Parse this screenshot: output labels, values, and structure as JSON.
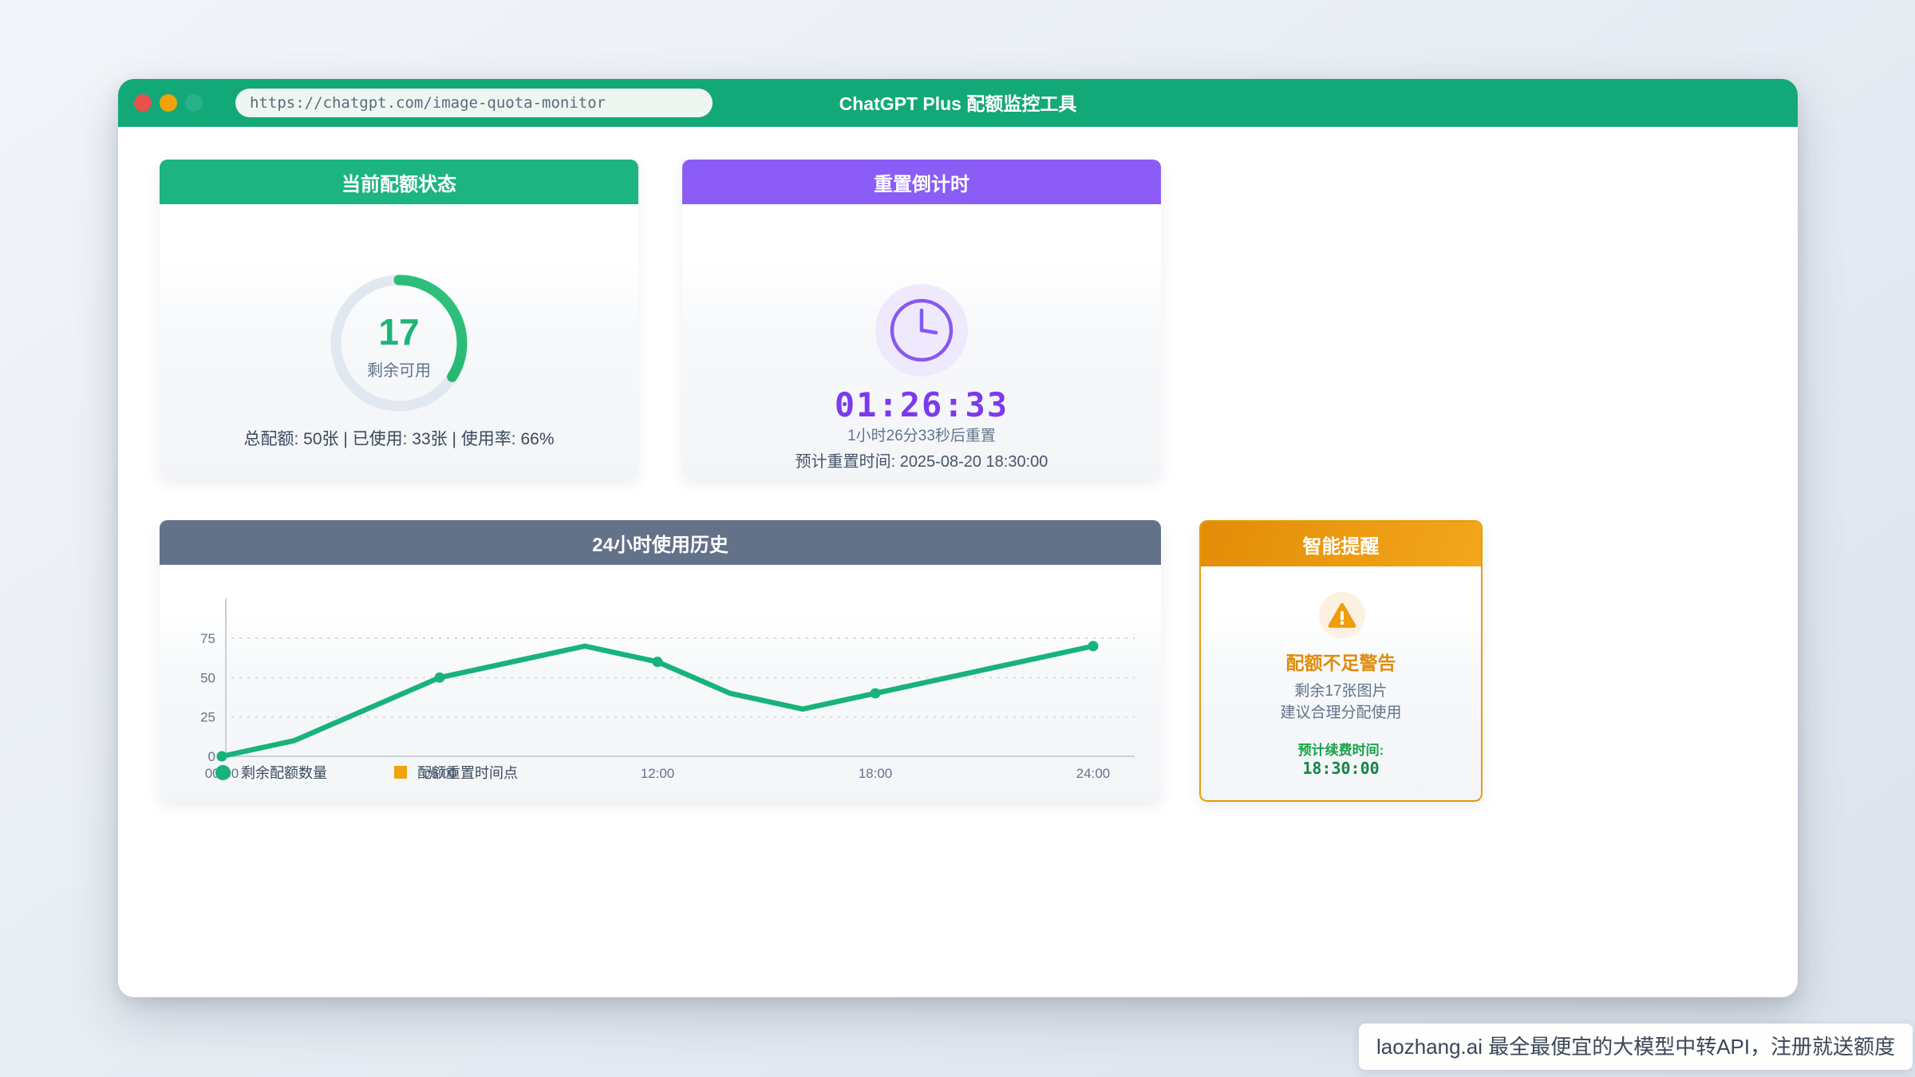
{
  "browser": {
    "url": "https://chatgpt.com/image-quota-monitor",
    "title": "ChatGPT Plus 配额监控工具",
    "traffic_lights": [
      "#e8524d",
      "#f0a30a",
      "#27b387"
    ]
  },
  "quota_card": {
    "title": "当前配额状态",
    "remaining_value": "17",
    "remaining_label": "剩余可用",
    "stats_line": "总配额: 50张 | 已使用: 33张 | 使用率: 66%",
    "ring": {
      "fraction": 0.34,
      "track_color": "#e2e8f0"
    }
  },
  "countdown_card": {
    "title": "重置倒计时",
    "time": "01:26:33",
    "subtitle": "1小时26分33秒后重置",
    "reset_line": "预计重置时间: 2025-08-20 18:30:00"
  },
  "history_card": {
    "title": "24小时使用历史",
    "legend": [
      {
        "label": "剩余配额数量",
        "color": "#17b37a",
        "shape": "circle"
      },
      {
        "label": "配额重置时间点",
        "color": "#f0a30a",
        "shape": "square"
      }
    ]
  },
  "chart_data": {
    "type": "line",
    "x_hours": [
      0,
      2,
      6,
      10,
      12,
      14,
      16,
      18,
      24
    ],
    "values": [
      0,
      10,
      50,
      70,
      60,
      40,
      30,
      40,
      70
    ],
    "marker_hours": [
      0,
      6,
      12,
      18,
      24
    ],
    "x_tick_hours": [
      0,
      6,
      12,
      18,
      24
    ],
    "x_tick_labels": [
      "00:00",
      "06:00",
      "12:00",
      "18:00",
      "24:00"
    ],
    "y_ticks": [
      0,
      25,
      50,
      75
    ],
    "xlim": [
      0,
      24
    ],
    "ylim": [
      0,
      100
    ],
    "title": "24小时使用历史",
    "grid": "horizontal-dashed",
    "legend_position": "bottom-left"
  },
  "alert_card": {
    "title": "智能提醒",
    "warning_title": "配额不足警告",
    "message_line1": "剩余17张图片",
    "message_line2": "建议合理分配使用",
    "renewal_label": "预计续费时间:",
    "renewal_time": "18:30:00"
  },
  "watermark": "laozhang.ai 最全最便宜的大模型中转API，注册就送额度",
  "colors": {
    "browser_bar": "#13a877",
    "quota_header": "#1cb480",
    "countdown_header": "#8b5cf6",
    "history_header": "#637189",
    "alert_header_dark": "#e28c08",
    "alert_header_light": "#f4a71b",
    "alert_border": "#e79b0a",
    "countdown_text": "#7c3aed",
    "remaining_text": "#1db477",
    "warning_text": "#e08c0b",
    "renewal_text": "#16a34a",
    "chart_line": "#17b37a",
    "arc_start": "#18a55f",
    "arc_end": "#31c57f"
  }
}
